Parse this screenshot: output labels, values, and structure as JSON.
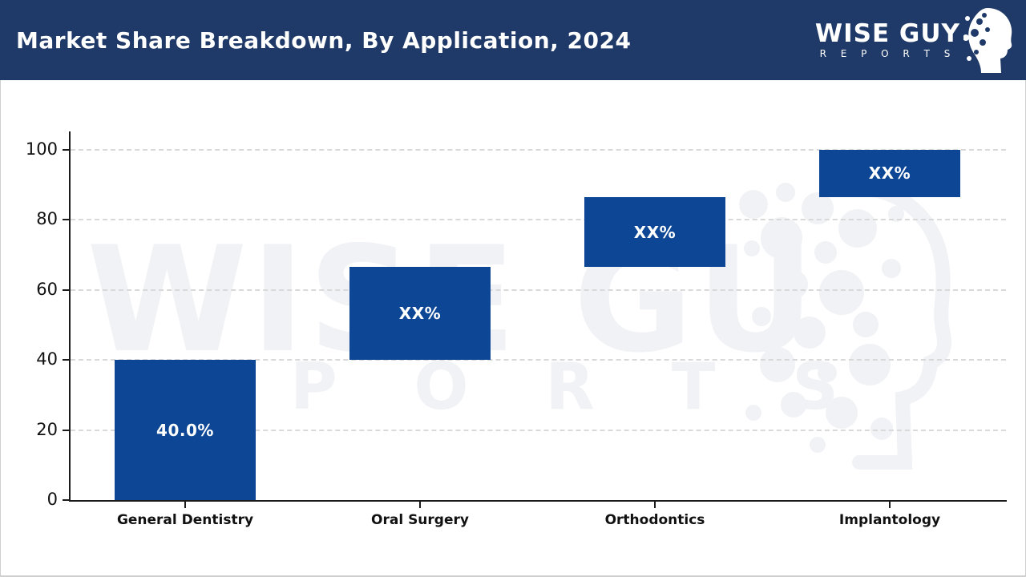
{
  "header": {
    "title": "Market Share Breakdown, By Application, 2024",
    "logo": {
      "line1": "WISE GUY",
      "line2": "R E P O R T S"
    }
  },
  "watermark": {
    "line1": "WISE GU",
    "line2": "P O R T S"
  },
  "chart_data": {
    "type": "bar",
    "subtype": "waterfall",
    "title": "Market Share Breakdown, By Application, 2024",
    "categories": [
      "General Dentistry",
      "Oral Surgery",
      "Orthodontics",
      "Implantology"
    ],
    "segments": [
      {
        "start": 0,
        "end": 40,
        "value": 40.0,
        "label": "40.0%"
      },
      {
        "start": 40,
        "end": 66.5,
        "value": 26.5,
        "label": "XX%"
      },
      {
        "start": 66.5,
        "end": 86.5,
        "value": 20.0,
        "label": "XX%"
      },
      {
        "start": 86.5,
        "end": 100,
        "value": 13.5,
        "label": "XX%"
      }
    ],
    "yticks": [
      0,
      20,
      40,
      60,
      80,
      100
    ],
    "ylim": [
      0,
      105
    ],
    "xlabel": "",
    "ylabel": "",
    "grid": "horizontal-dashed",
    "legend": "none",
    "bar_color": "#0c4695",
    "bar_label_color": "#ffffff"
  },
  "colors": {
    "header_bg": "#1f3a68",
    "bar": "#0c4695",
    "watermark": "#f1f2f5",
    "gridline": "#d9d9d9",
    "axis": "#1a1a1a",
    "frame_border": "#cfcfcf"
  }
}
